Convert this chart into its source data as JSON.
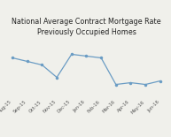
{
  "title": "National Average Contract Mortgage Rate\nPreviously Occupied Homes",
  "title_fontsize": 5.8,
  "x_labels": [
    "Aug-15",
    "Sep-15",
    "Oct-15",
    "Nov-15",
    "Dec-15",
    "Jan-16",
    "Feb-16",
    "Mar-16",
    "Apr-16",
    "May-16",
    "Jun-16"
  ],
  "y_values": [
    3.91,
    3.89,
    3.87,
    3.8,
    3.93,
    3.92,
    3.91,
    3.76,
    3.77,
    3.76,
    3.78
  ],
  "line_color": "#6a9cc4",
  "line_width": 0.9,
  "marker": "o",
  "marker_size": 1.5,
  "bg_color": "#f0f0eb",
  "grid_color": "#ffffff",
  "tick_fontsize": 3.8,
  "tick_color": "#555555",
  "ylim": [
    3.68,
    4.02
  ],
  "figwidth": 1.93,
  "figheight": 1.55,
  "dpi": 100
}
